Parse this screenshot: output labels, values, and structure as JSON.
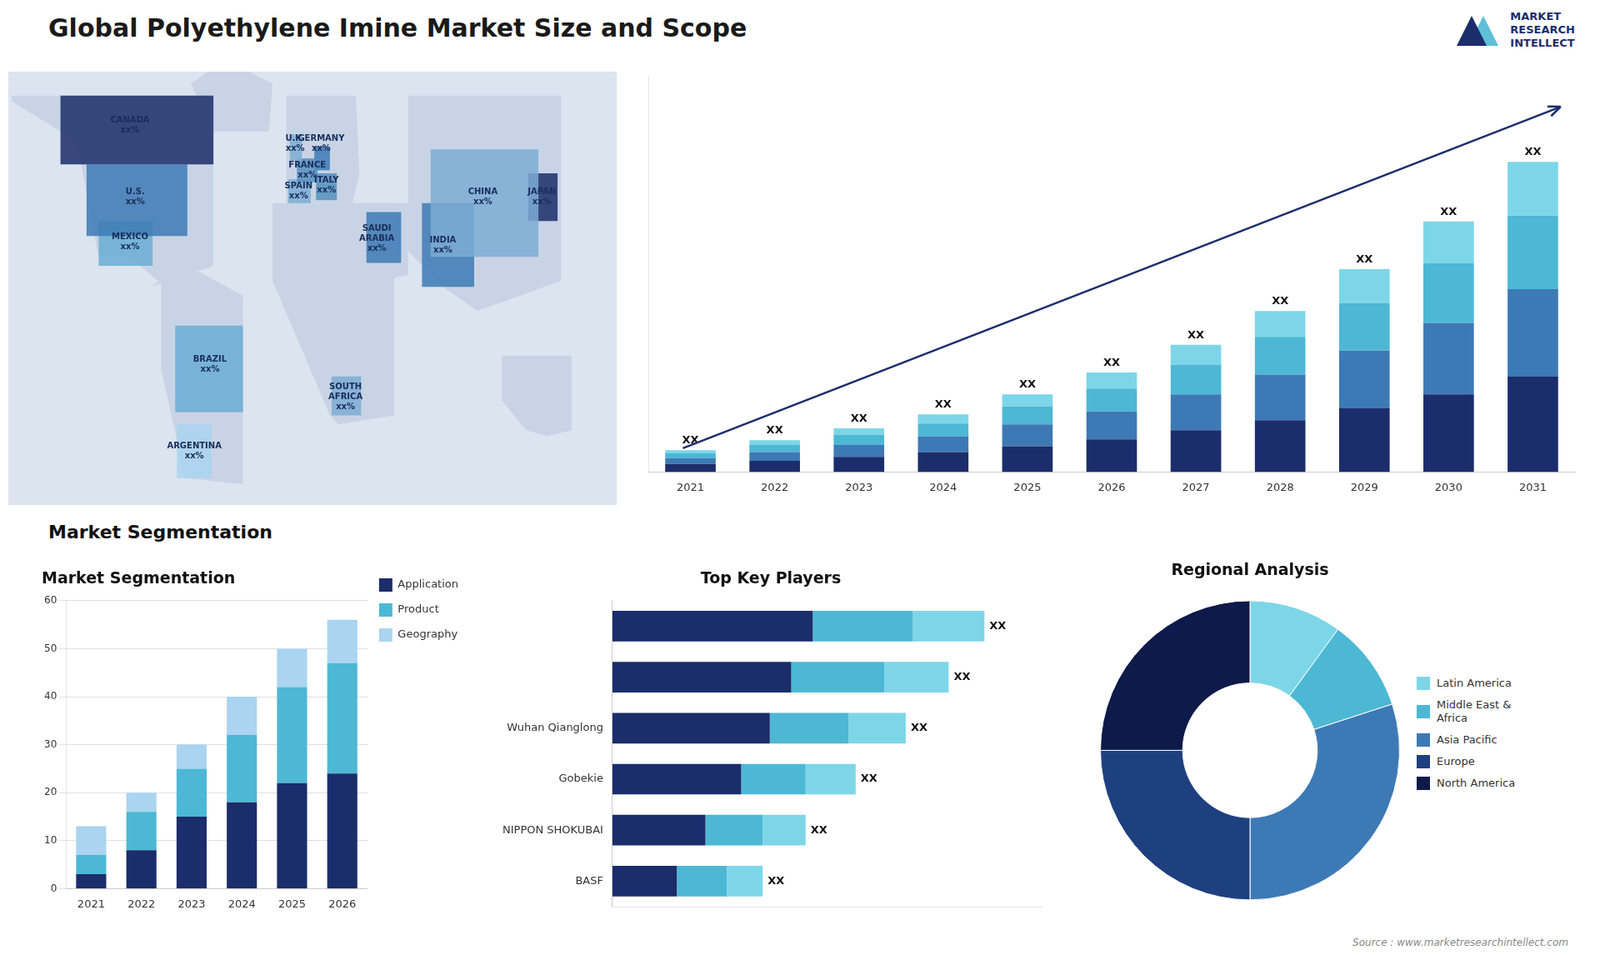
{
  "title": "Global Polyethylene Imine Market Size and Scope",
  "section_title": "Market Segmentation",
  "source": "Source : www.marketresearchintellect.com",
  "logo_text": [
    "MARKET",
    "RESEARCH",
    "INTELLECT"
  ],
  "chart_data": [
    {
      "type": "map",
      "xlim": [
        -170,
        180
      ],
      "ylim": [
        -65,
        80
      ],
      "tick_labels": false,
      "grid": false,
      "ocean": "#dce4ef",
      "land_color": "#c8d4e5",
      "land": [
        [
          [
            -168,
            72
          ],
          [
            -52,
            72
          ],
          [
            -52,
            15
          ],
          [
            -88,
            8
          ],
          [
            -83,
            10
          ],
          [
            -80,
            8
          ],
          [
            -100,
            18
          ],
          [
            -118,
            18
          ],
          [
            -122,
            30
          ],
          [
            -130,
            55
          ],
          [
            -140,
            60
          ],
          [
            -168,
            70
          ]
        ],
        [
          [
            -82,
            12
          ],
          [
            -60,
            13
          ],
          [
            -35,
            5
          ],
          [
            -35,
            -58
          ],
          [
            -68,
            -56
          ],
          [
            -82,
            -20
          ],
          [
            -82,
            12
          ]
        ],
        [
          [
            -10,
            36
          ],
          [
            28,
            36
          ],
          [
            32,
            46
          ],
          [
            30,
            72
          ],
          [
            -10,
            72
          ],
          [
            -10,
            36
          ]
        ],
        [
          [
            -18,
            36
          ],
          [
            52,
            36
          ],
          [
            52,
            -35
          ],
          [
            20,
            -38
          ],
          [
            15,
            -35
          ],
          [
            -18,
            10
          ],
          [
            -18,
            36
          ]
        ],
        [
          [
            28,
            36
          ],
          [
            60,
            36
          ],
          [
            60,
            12
          ],
          [
            44,
            10
          ],
          [
            36,
            15
          ],
          [
            28,
            36
          ]
        ],
        [
          [
            60,
            72
          ],
          [
            148,
            72
          ],
          [
            148,
            10
          ],
          [
            100,
            0
          ],
          [
            80,
            8
          ],
          [
            60,
            20
          ],
          [
            60,
            72
          ]
        ],
        [
          [
            114,
            -15
          ],
          [
            154,
            -15
          ],
          [
            154,
            -40
          ],
          [
            140,
            -42
          ],
          [
            128,
            -40
          ],
          [
            114,
            -30
          ],
          [
            114,
            -15
          ]
        ],
        [
          [
            -52,
            60
          ],
          [
            -20,
            60
          ],
          [
            -18,
            76
          ],
          [
            -45,
            84
          ],
          [
            -65,
            76
          ],
          [
            -52,
            60
          ]
        ]
      ],
      "regions": [
        {
          "color": "#1b2d6b",
          "coords": [
            [
              -140,
              49
            ],
            [
              -52,
              49
            ],
            [
              -52,
              72
            ],
            [
              -140,
              72
            ]
          ]
        },
        {
          "color": "#3d7ab5",
          "coords": [
            [
              -125,
              25
            ],
            [
              -67,
              25
            ],
            [
              -67,
              49
            ],
            [
              -125,
              49
            ]
          ]
        },
        {
          "color": "#6aadd5",
          "coords": [
            [
              -118,
              15
            ],
            [
              -87,
              15
            ],
            [
              -87,
              30
            ],
            [
              -118,
              30
            ]
          ]
        },
        {
          "color": "#6aadd5",
          "coords": [
            [
              -74,
              -34
            ],
            [
              -35,
              -34
            ],
            [
              -35,
              -5
            ],
            [
              -74,
              -5
            ]
          ]
        },
        {
          "color": "#aad4f0",
          "coords": [
            [
              -73,
              -56
            ],
            [
              -53,
              -56
            ],
            [
              -53,
              -38
            ],
            [
              -73,
              -38
            ]
          ]
        },
        {
          "color": "#7dadd5",
          "coords": [
            [
              -8,
              50
            ],
            [
              -1,
              50
            ],
            [
              -1,
              59
            ],
            [
              -8,
              59
            ]
          ]
        },
        {
          "color": "#5590c0",
          "coords": [
            [
              -4,
              43
            ],
            [
              8,
              43
            ],
            [
              8,
              51
            ],
            [
              -4,
              51
            ]
          ]
        },
        {
          "color": "#7dadd5",
          "coords": [
            [
              -9,
              36
            ],
            [
              4,
              36
            ],
            [
              4,
              44
            ],
            [
              -9,
              44
            ]
          ]
        },
        {
          "color": "#3d7ab5",
          "coords": [
            [
              6,
              47
            ],
            [
              15,
              47
            ],
            [
              15,
              55
            ],
            [
              6,
              55
            ]
          ]
        },
        {
          "color": "#5590c0",
          "coords": [
            [
              7,
              37
            ],
            [
              19,
              37
            ],
            [
              19,
              46
            ],
            [
              7,
              46
            ]
          ]
        },
        {
          "color": "#3d7ab5",
          "coords": [
            [
              36,
              16
            ],
            [
              56,
              16
            ],
            [
              56,
              33
            ],
            [
              36,
              33
            ]
          ]
        },
        {
          "color": "#7dadd5",
          "coords": [
            [
              16,
              -35
            ],
            [
              33,
              -35
            ],
            [
              33,
              -22
            ],
            [
              16,
              -22
            ]
          ]
        },
        {
          "color": "#7dadd5",
          "coords": [
            [
              73,
              18
            ],
            [
              135,
              18
            ],
            [
              135,
              54
            ],
            [
              73,
              54
            ]
          ]
        },
        {
          "color": "#3d7ab5",
          "coords": [
            [
              68,
              8
            ],
            [
              98,
              8
            ],
            [
              98,
              36
            ],
            [
              68,
              36
            ]
          ]
        },
        {
          "color": "#1b2d6b",
          "coords": [
            [
              129,
              30
            ],
            [
              146,
              30
            ],
            [
              146,
              46
            ],
            [
              129,
              46
            ]
          ]
        }
      ],
      "labels": [
        {
          "text": "CANADA\nxx%",
          "x": -100,
          "y": 62
        },
        {
          "text": "U.S.\nxx%",
          "x": -97,
          "y": 38
        },
        {
          "text": "MEXICO\nxx%",
          "x": -100,
          "y": 23
        },
        {
          "text": "BRAZIL\nxx%",
          "x": -54,
          "y": -18
        },
        {
          "text": "ARGENTINA\nxx%",
          "x": -63,
          "y": -47
        },
        {
          "text": "U.K.\nxx%",
          "x": -5,
          "y": 56
        },
        {
          "text": "FRANCE\nxx%",
          "x": 2,
          "y": 47
        },
        {
          "text": "SPAIN\nxx%",
          "x": -3,
          "y": 40
        },
        {
          "text": "GERMANY\nxx%",
          "x": 10,
          "y": 56
        },
        {
          "text": "ITALY\nxx%",
          "x": 13,
          "y": 42
        },
        {
          "text": "SAUDI\nARABIA\nxx%",
          "x": 42,
          "y": 24
        },
        {
          "text": "SOUTH\nAFRICA\nxx%",
          "x": 24,
          "y": -29
        },
        {
          "text": "CHINA\nxx%",
          "x": 103,
          "y": 38
        },
        {
          "text": "INDIA\nxx%",
          "x": 80,
          "y": 22
        },
        {
          "text": "JAPAN\nxx%",
          "x": 137,
          "y": 38
        }
      ]
    },
    {
      "type": "bar",
      "stacked": true,
      "categories": [
        "2021",
        "2022",
        "2023",
        "2024",
        "2025",
        "2026",
        "2027",
        "2028",
        "2029",
        "2030",
        "2031"
      ],
      "series": [
        {
          "color": "#1b2d6b",
          "values": [
            2.0,
            2.8,
            3.8,
            5.0,
            6.5,
            8.2,
            10.5,
            13.0,
            16.0,
            19.5,
            24.0
          ]
        },
        {
          "color": "#3d7ab5",
          "values": [
            1.5,
            2.2,
            3.0,
            4.0,
            5.5,
            7.0,
            9.0,
            11.5,
            14.5,
            18.0,
            22.0
          ]
        },
        {
          "color": "#4db8d4",
          "values": [
            1.2,
            1.8,
            2.5,
            3.2,
            4.5,
            5.8,
            7.5,
            9.5,
            12.0,
            15.0,
            18.5
          ]
        },
        {
          "color": "#7dd6e8",
          "values": [
            0.8,
            1.2,
            1.7,
            2.3,
            3.0,
            4.0,
            5.0,
            6.5,
            8.5,
            10.5,
            13.5
          ]
        }
      ],
      "ylim": [
        0,
        99.84
      ],
      "tick_labels": "x",
      "grid": false,
      "bar_labels": [
        "XX",
        "XX",
        "XX",
        "XX",
        "XX",
        "XX",
        "XX",
        "XX",
        "XX",
        "XX",
        "XX"
      ]
    },
    {
      "type": "bar",
      "title": "Market Segmentation",
      "stacked": true,
      "categories": [
        "2021",
        "2022",
        "2023",
        "2024",
        "2025",
        "2026"
      ],
      "series": [
        {
          "name": "Application",
          "color": "#1b2d6b",
          "values": [
            3,
            8,
            15,
            18,
            22,
            24
          ]
        },
        {
          "name": "Product",
          "color": "#4db8d4",
          "values": [
            4,
            8,
            10,
            14,
            20,
            23
          ]
        },
        {
          "name": "Geography",
          "color": "#aad4f0",
          "values": [
            6,
            4,
            5,
            8,
            8,
            9
          ]
        }
      ],
      "ylim": [
        0,
        60
      ],
      "yticks": [
        0,
        10,
        20,
        30,
        40,
        50,
        60
      ],
      "grid": true,
      "legend": "right"
    },
    {
      "type": "bar",
      "title": "Top Key Players",
      "orientation": "horizontal",
      "stacked": true,
      "categories": [
        null,
        null,
        "Wuhan Qianglong",
        "Gobekie",
        "NIPPON SHOKUBAI",
        "BASF"
      ],
      "series": [
        {
          "color": "#1b2d6b",
          "values": [
            28,
            25,
            22,
            18,
            13,
            9
          ]
        },
        {
          "color": "#4db8d4",
          "values": [
            14,
            13,
            11,
            9,
            8,
            7
          ]
        },
        {
          "color": "#7dd6e8",
          "values": [
            10,
            9,
            8,
            7,
            6,
            5
          ]
        }
      ],
      "xlim": [
        0,
        60
      ],
      "tick_labels": "y",
      "grid": false,
      "bar_labels": [
        "XX",
        "XX",
        "XX",
        "XX",
        "XX",
        "XX"
      ]
    },
    {
      "type": "doughnut",
      "title": "Regional Analysis",
      "categories": [
        "Latin America",
        "Middle East &\nAfrica",
        "Asia Pacific",
        "Europe",
        "North America"
      ],
      "values": [
        0.1,
        0.1,
        0.3,
        0.25,
        0.25
      ],
      "colors": [
        "#7dd6e8",
        "#4db8d4",
        "#3d7ab5",
        "#1e4080",
        "#0d1a4a"
      ],
      "legend": "right"
    }
  ]
}
